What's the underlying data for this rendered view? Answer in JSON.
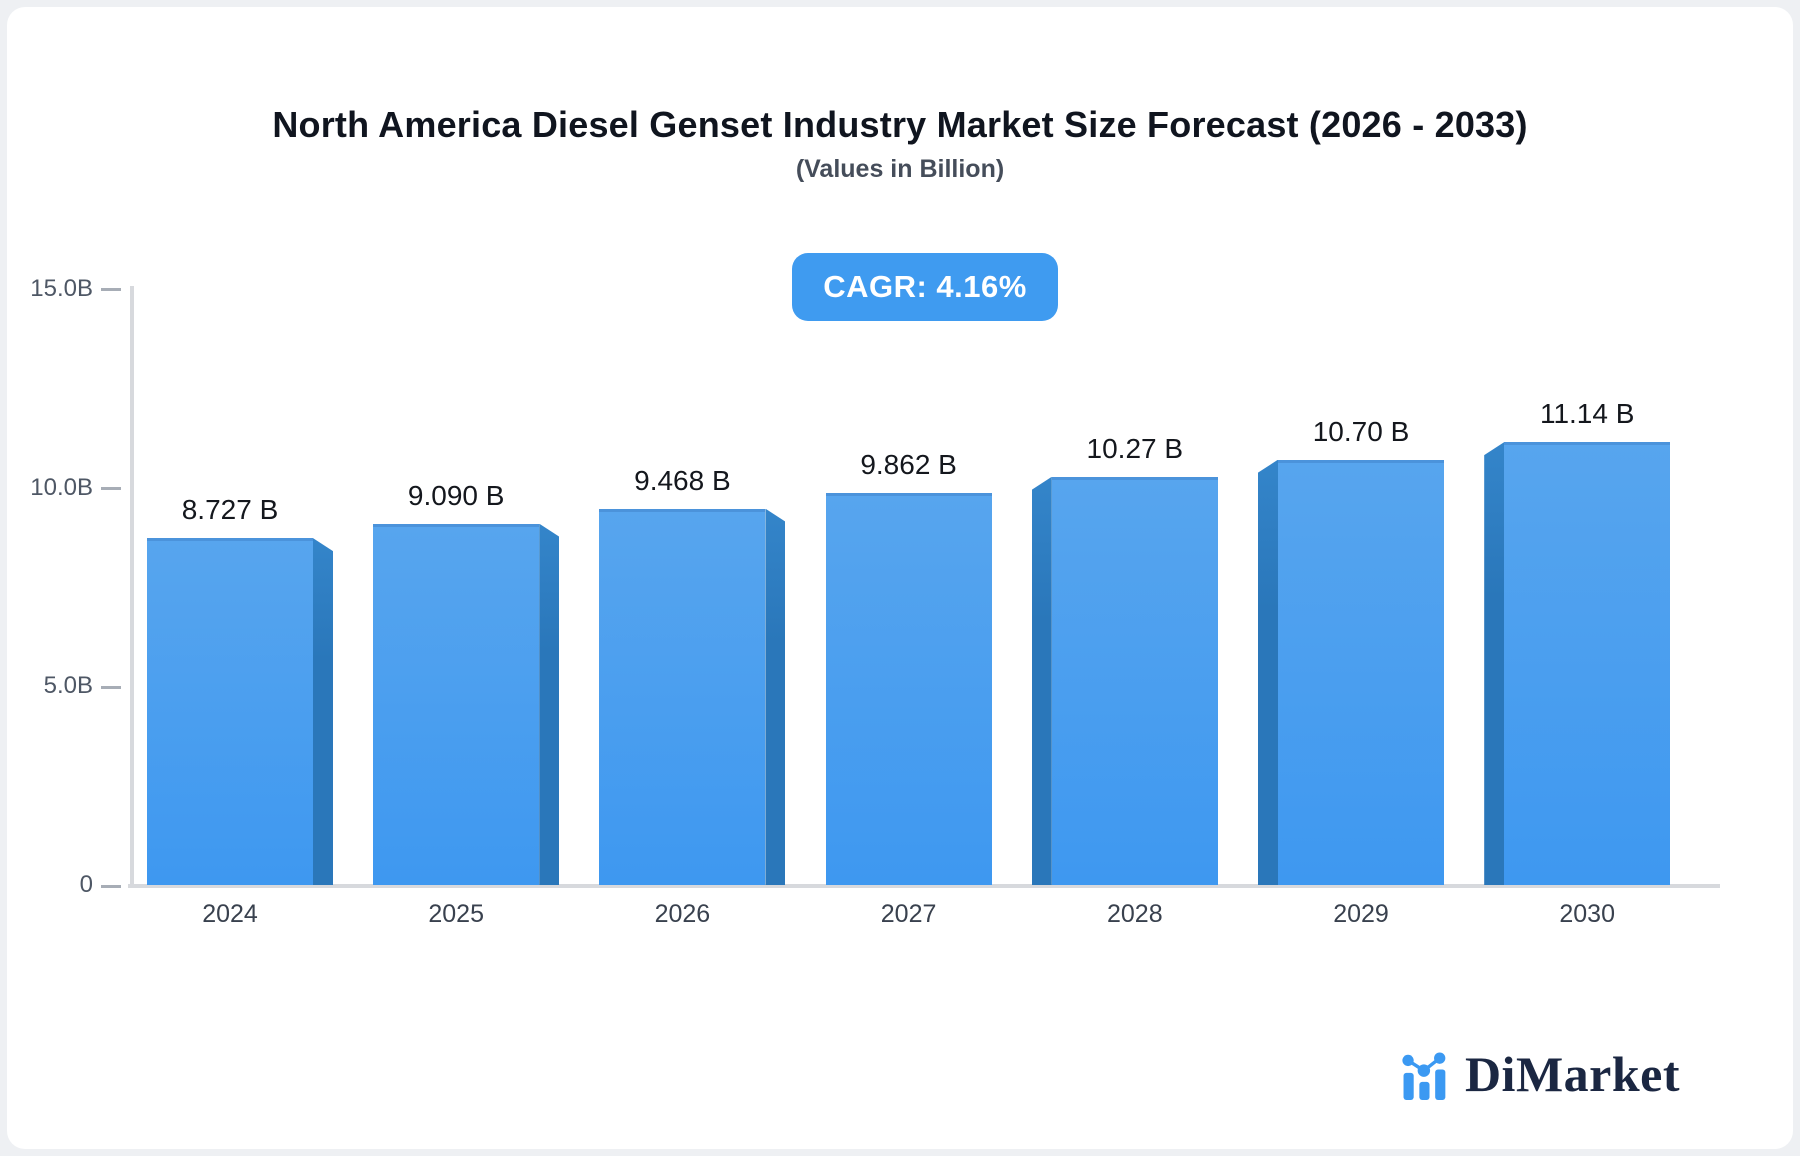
{
  "title": "North America Diesel Genset Industry Market Size Forecast (2026 - 2033)",
  "subtitle": "(Values in Billion)",
  "badge": {
    "label": "CAGR: 4.16%"
  },
  "chart_data": {
    "type": "bar",
    "title": "North America Diesel Genset Industry Market Size Forecast (2026 - 2033)",
    "subtitle": "(Values in Billion)",
    "categories": [
      "2024",
      "2025",
      "2026",
      "2027",
      "2028",
      "2029",
      "2030"
    ],
    "values": [
      8.727,
      9.09,
      9.468,
      9.862,
      10.27,
      10.7,
      11.14
    ],
    "value_labels": [
      "8.727 B",
      "9.090 B",
      "9.468 B",
      "9.862 B",
      "10.27 B",
      "10.70 B",
      "11.14 B"
    ],
    "xlabel": "",
    "ylabel": "",
    "ylim": [
      0,
      15
    ],
    "yticks": [
      {
        "label": "15.0B",
        "value": 15
      },
      {
        "label": "10.0B",
        "value": 10
      },
      {
        "label": "5.0B",
        "value": 5
      },
      {
        "label": "0",
        "value": 0
      }
    ],
    "grid": false,
    "legend": false,
    "annotation": "CAGR: 4.16%",
    "style": "3d-perspective-bars"
  },
  "logo": {
    "text": "DiMarket",
    "icon": "bar-chart-logo-icon"
  },
  "colors": {
    "bar_gradient_top": "#57a5ee",
    "bar_gradient_bottom": "#3e98f0",
    "bar_side": "#2a77ba",
    "badge_bg": "#3f9bf0",
    "logo_blue": "#3b99f2",
    "logo_navy": "#1b2742",
    "axis_gray": "#d7d9dd"
  }
}
